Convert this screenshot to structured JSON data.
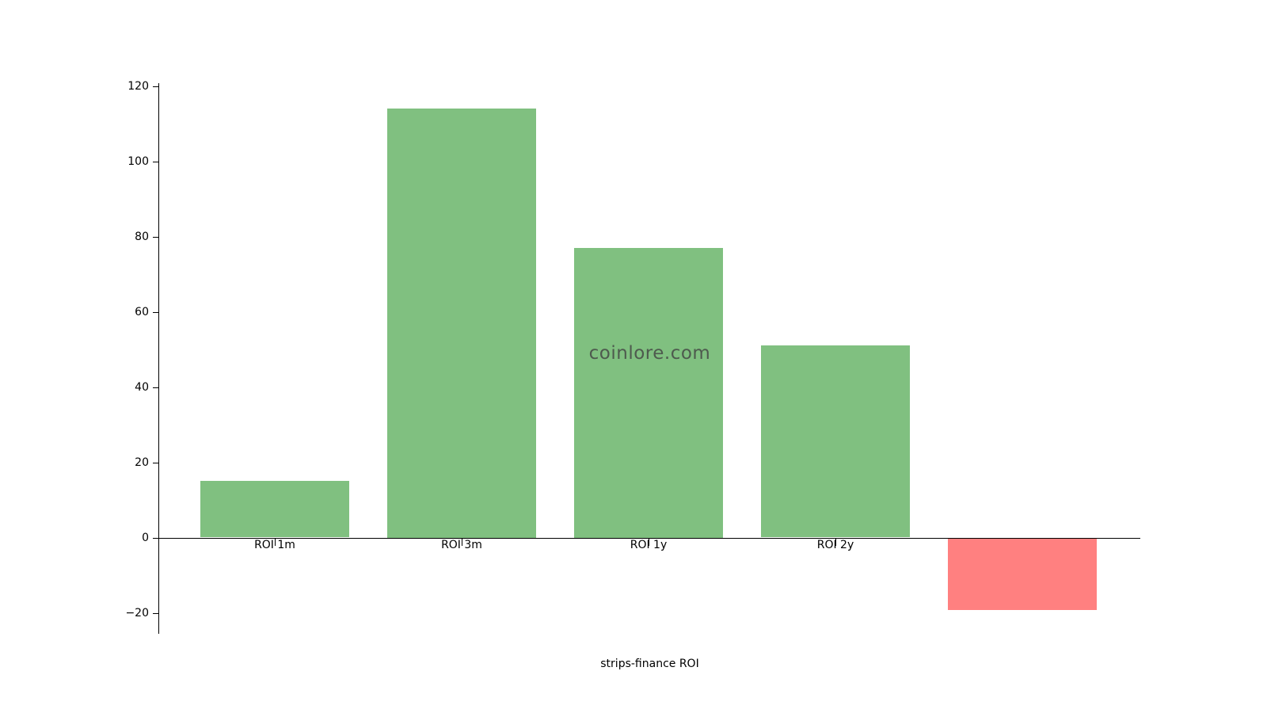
{
  "watermark": {
    "text": "coinlore.com"
  },
  "chart_data": {
    "type": "bar",
    "title": "strips-finance ROI",
    "categories": [
      "ROI 1m",
      "ROI 3m",
      "ROI 1y",
      "ROI 2y",
      ""
    ],
    "values": [
      15,
      114,
      77,
      51,
      -19
    ],
    "xlabel": "",
    "ylabel": "",
    "yticks": [
      -20,
      0,
      20,
      40,
      60,
      80,
      100,
      120
    ],
    "ylim": [
      -25.65,
      120.65
    ],
    "grid": false,
    "legend": false,
    "colors": {
      "positive": "#80c080",
      "negative": "#ff8080",
      "axis": "#000000",
      "watermark": "#444444",
      "background": "#ffffff"
    }
  }
}
